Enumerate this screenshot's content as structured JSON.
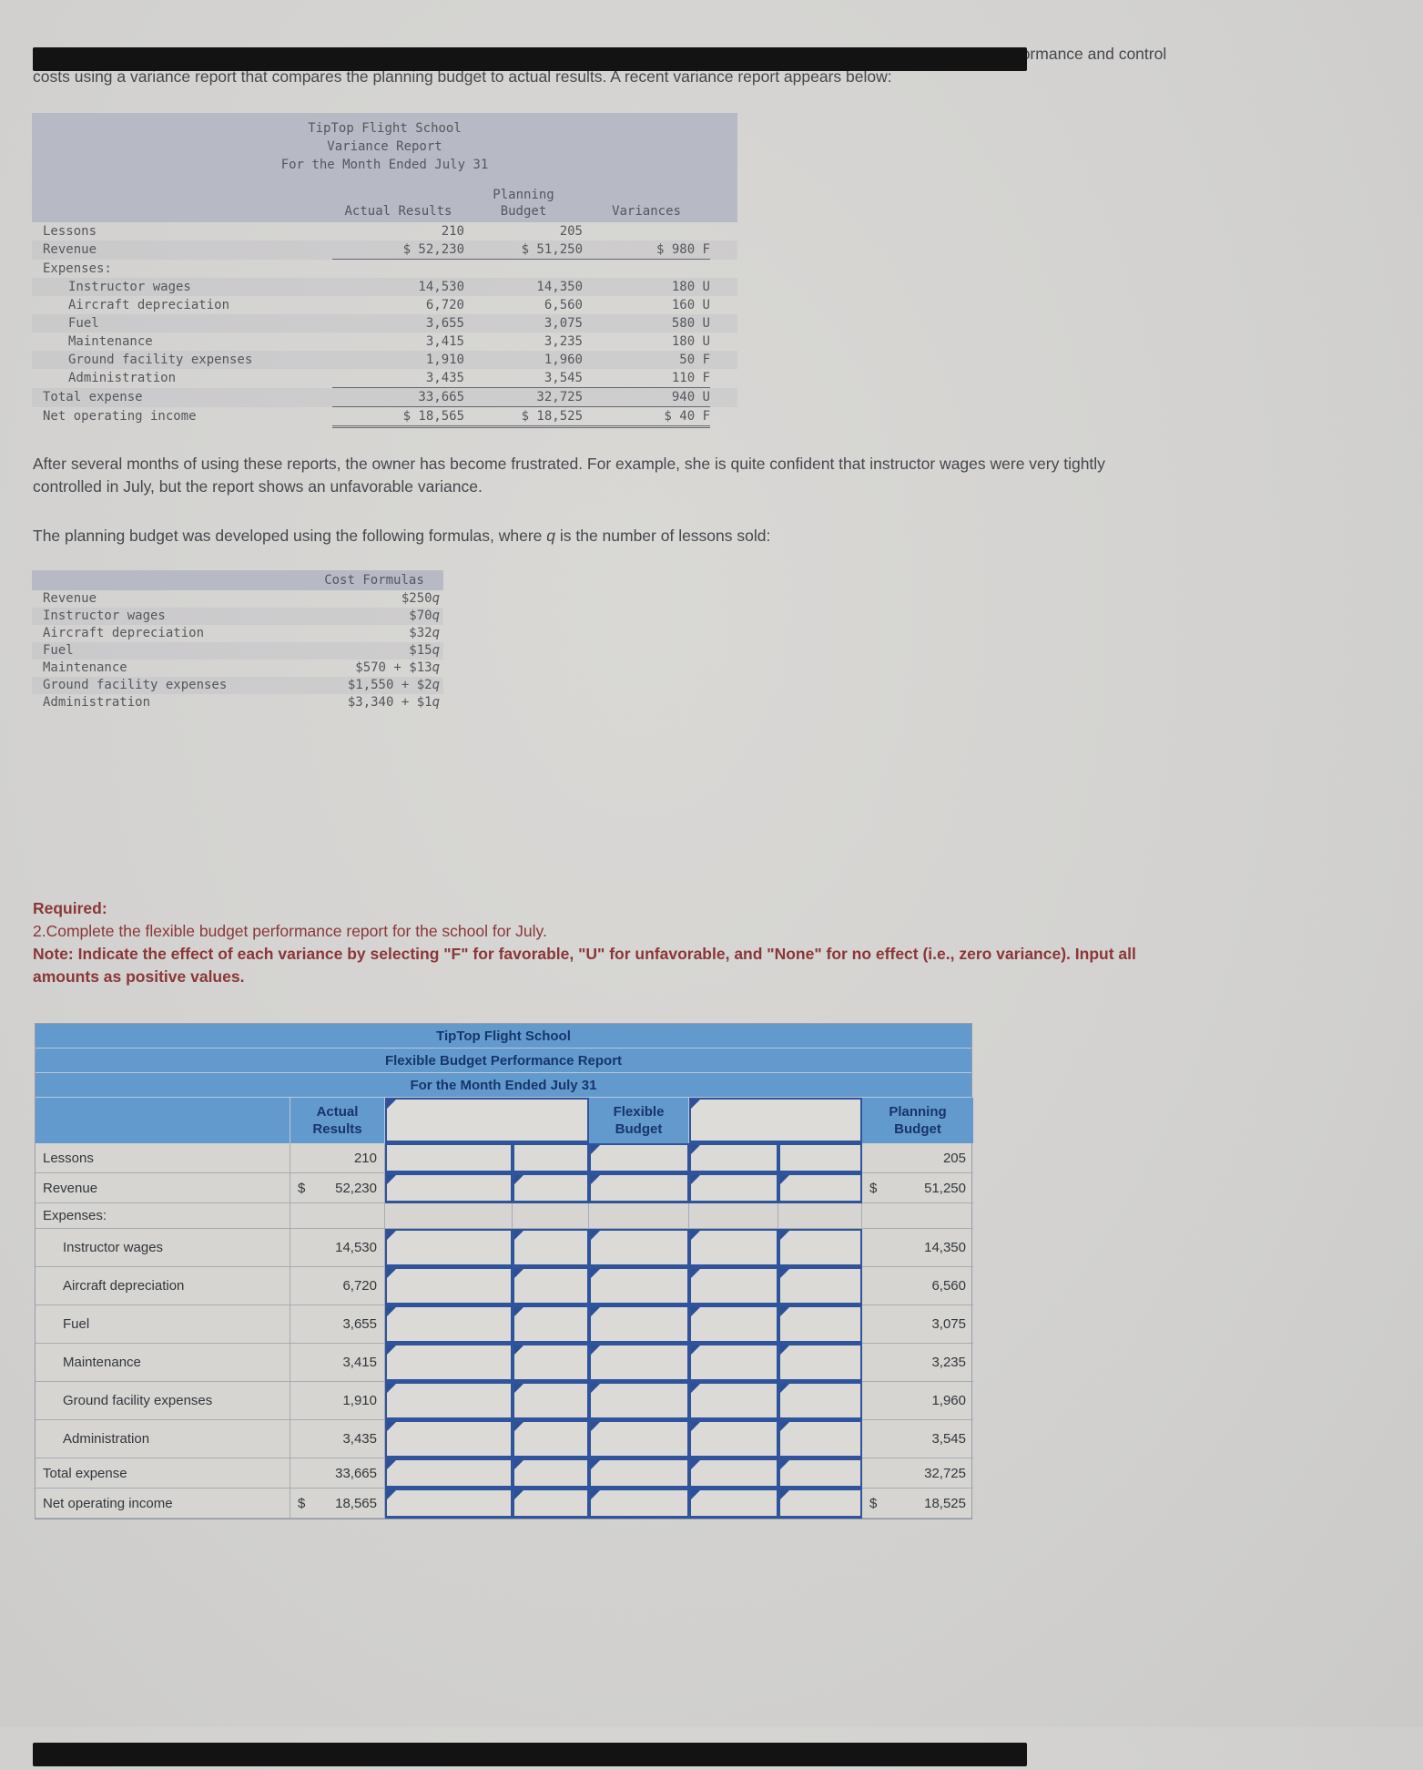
{
  "page": {
    "intro": "TipTop Flight School offers flying lessons at a small municipal airport. The school's owner and manager has been attempting to evaluate performance and control costs using a variance report that compares the planning budget to actual results. A recent variance report appears below:",
    "para_after": "After several months of using these reports, the owner has become frustrated. For example, she is quite confident that instructor wages were very tightly controlled in July, but the report shows an unfavorable variance.",
    "para_formulas_pre": "The planning budget was developed using the following formulas, where ",
    "para_formulas_q": "q",
    "para_formulas_post": " is the number of lessons sold:",
    "required_label": "Required:",
    "required_item": "2.Complete the flexible budget performance report for the school for July.",
    "required_note": "Note: Indicate the effect of each variance by selecting \"F\" for favorable, \"U\" for unfavorable, and \"None\" for no effect (i.e., zero variance). Input all amounts as positive values."
  },
  "variance_report": {
    "title1": "TipTop Flight School",
    "title2": "Variance Report",
    "title3": "For the Month Ended July 31",
    "col_actual": "Actual Results",
    "col_planning_l1": "Planning",
    "col_planning_l2": "Budget",
    "col_variances": "Variances",
    "rows": [
      {
        "label": "Lessons",
        "indent": false,
        "actual": "210",
        "planning": "205",
        "variance": "",
        "rule": ""
      },
      {
        "label": "Revenue",
        "indent": false,
        "actual": "$ 52,230",
        "planning": "$ 51,250",
        "variance": "$ 980 F",
        "rule": "single"
      },
      {
        "label": "Expenses:",
        "indent": false,
        "actual": "",
        "planning": "",
        "variance": "",
        "rule": ""
      },
      {
        "label": "Instructor wages",
        "indent": true,
        "actual": "14,530",
        "planning": "14,350",
        "variance": "180 U",
        "rule": ""
      },
      {
        "label": "Aircraft depreciation",
        "indent": true,
        "actual": "6,720",
        "planning": "6,560",
        "variance": "160 U",
        "rule": ""
      },
      {
        "label": "Fuel",
        "indent": true,
        "actual": "3,655",
        "planning": "3,075",
        "variance": "580 U",
        "rule": ""
      },
      {
        "label": "Maintenance",
        "indent": true,
        "actual": "3,415",
        "planning": "3,235",
        "variance": "180 U",
        "rule": ""
      },
      {
        "label": "Ground facility expenses",
        "indent": true,
        "actual": "1,910",
        "planning": "1,960",
        "variance": "50 F",
        "rule": ""
      },
      {
        "label": "Administration",
        "indent": true,
        "actual": "3,435",
        "planning": "3,545",
        "variance": "110 F",
        "rule": "single"
      },
      {
        "label": "Total expense",
        "indent": false,
        "actual": "33,665",
        "planning": "32,725",
        "variance": "940 U",
        "rule": "single"
      },
      {
        "label": "Net operating income",
        "indent": false,
        "actual": "$ 18,565",
        "planning": "$ 18,525",
        "variance": "$ 40 F",
        "rule": "double"
      }
    ]
  },
  "cost_formulas": {
    "header": "Cost Formulas",
    "rows": [
      {
        "label": "Revenue",
        "formula": "$250q"
      },
      {
        "label": "Instructor wages",
        "formula": "$70q"
      },
      {
        "label": "Aircraft depreciation",
        "formula": "$32q"
      },
      {
        "label": "Fuel",
        "formula": "$15q"
      },
      {
        "label": "Maintenance",
        "formula": "$570 + $13q"
      },
      {
        "label": "Ground facility expenses",
        "formula": "$1,550 + $2q"
      },
      {
        "label": "Administration",
        "formula": "$3,340 + $1q"
      }
    ]
  },
  "flex_report": {
    "title1": "TipTop Flight School",
    "title2": "Flexible Budget Performance Report",
    "title3": "For the Month Ended July 31",
    "col_actual_l1": "Actual",
    "col_actual_l2": "Results",
    "col_flexible_l1": "Flexible",
    "col_flexible_l2": "Budget",
    "col_planning_l1": "Planning",
    "col_planning_l2": "Budget",
    "colors": {
      "header_blue": "#639ace",
      "header_text": "#16356b",
      "input_border": "#2f549b"
    },
    "rows": [
      {
        "label": "Lessons",
        "indent": false,
        "type": "data",
        "actual_cur": "",
        "actual": "210",
        "planning_cur": "",
        "planning": "205",
        "markers": {
          "v1": false,
          "f1": false,
          "fb": true,
          "v2": true,
          "f2": false
        }
      },
      {
        "label": "Revenue",
        "indent": false,
        "type": "data",
        "actual_cur": "$",
        "actual": "52,230",
        "planning_cur": "$",
        "planning": "51,250",
        "markers": {
          "v1": true,
          "f1": true,
          "fb": true,
          "v2": true,
          "f2": true
        }
      },
      {
        "label": "Expenses:",
        "indent": false,
        "type": "plain",
        "actual_cur": "",
        "actual": "",
        "planning_cur": "",
        "planning": ""
      },
      {
        "label": "Instructor wages",
        "indent": true,
        "type": "data",
        "actual_cur": "",
        "actual": "14,530",
        "planning_cur": "",
        "planning": "14,350",
        "markers": {
          "v1": true,
          "f1": true,
          "fb": true,
          "v2": true,
          "f2": true
        }
      },
      {
        "label": "Aircraft depreciation",
        "indent": true,
        "type": "data",
        "actual_cur": "",
        "actual": "6,720",
        "planning_cur": "",
        "planning": "6,560",
        "markers": {
          "v1": true,
          "f1": true,
          "fb": true,
          "v2": true,
          "f2": true
        }
      },
      {
        "label": "Fuel",
        "indent": true,
        "type": "data",
        "actual_cur": "",
        "actual": "3,655",
        "planning_cur": "",
        "planning": "3,075",
        "markers": {
          "v1": true,
          "f1": true,
          "fb": true,
          "v2": true,
          "f2": true
        }
      },
      {
        "label": "Maintenance",
        "indent": true,
        "type": "data",
        "actual_cur": "",
        "actual": "3,415",
        "planning_cur": "",
        "planning": "3,235",
        "markers": {
          "v1": true,
          "f1": true,
          "fb": true,
          "v2": true,
          "f2": true
        }
      },
      {
        "label": "Ground facility expenses",
        "indent": true,
        "type": "data",
        "actual_cur": "",
        "actual": "1,910",
        "planning_cur": "",
        "planning": "1,960",
        "markers": {
          "v1": true,
          "f1": true,
          "fb": true,
          "v2": true,
          "f2": true
        }
      },
      {
        "label": "Administration",
        "indent": true,
        "type": "data",
        "actual_cur": "",
        "actual": "3,435",
        "planning_cur": "",
        "planning": "3,545",
        "markers": {
          "v1": true,
          "f1": true,
          "fb": true,
          "v2": true,
          "f2": true
        }
      },
      {
        "label": "Total expense",
        "indent": false,
        "type": "data",
        "actual_cur": "",
        "actual": "33,665",
        "planning_cur": "",
        "planning": "32,725",
        "markers": {
          "v1": true,
          "f1": true,
          "fb": true,
          "v2": true,
          "f2": true
        }
      },
      {
        "label": "Net operating income",
        "indent": false,
        "type": "data",
        "actual_cur": "$",
        "actual": "18,565",
        "planning_cur": "$",
        "planning": "18,525",
        "markers": {
          "v1": true,
          "f1": true,
          "fb": true,
          "v2": true,
          "f2": true
        }
      }
    ]
  }
}
